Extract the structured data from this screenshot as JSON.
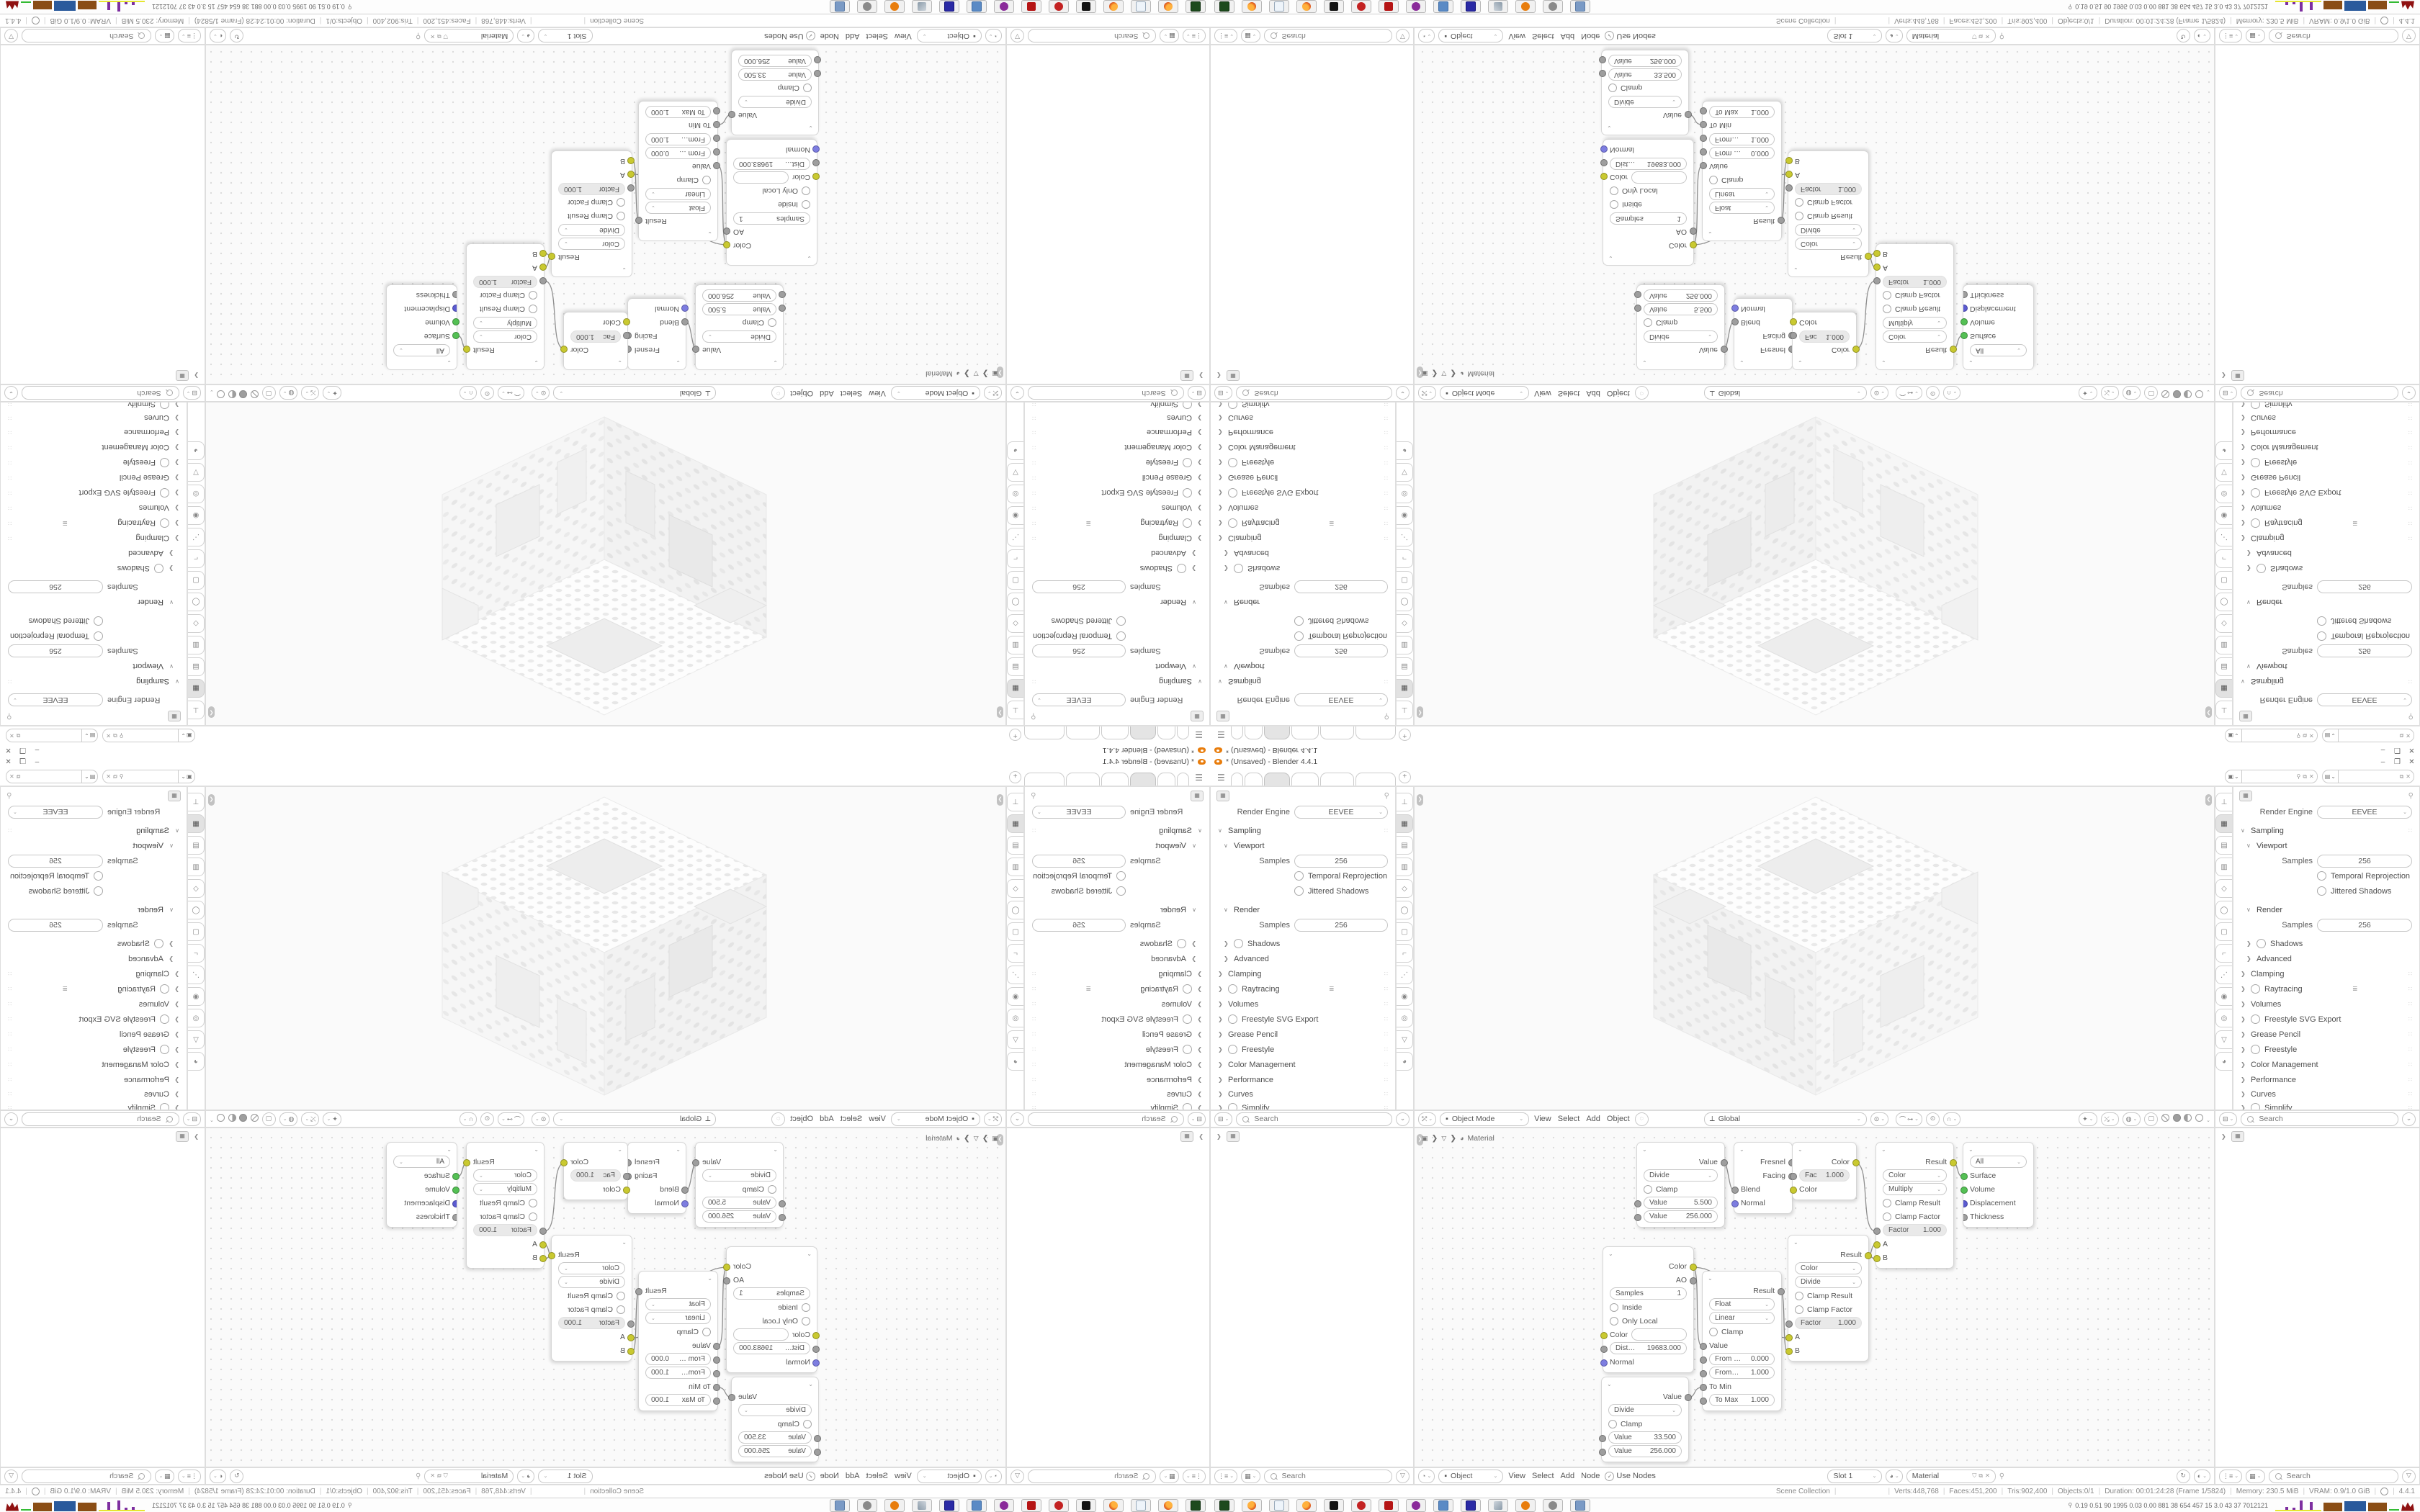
{
  "window": {
    "title": "* (Unsaved) - Blender 4.4.1",
    "minimize": "–",
    "maximize": "❐",
    "close": "✕"
  },
  "topbar": {
    "plus": "+"
  },
  "common": {
    "search": "Search"
  },
  "props": {
    "render_engine_label": "Render Engine",
    "render_engine_value": "EEVEE",
    "sampling": "Sampling",
    "viewport": "Viewport",
    "samples_label": "Samples",
    "samples_viewport": "256",
    "temporal_reprojection": "Temporal Reprojection",
    "jittered_shadows": "Jittered Shadows",
    "render": "Render",
    "samples_render": "256",
    "shadows": "Shadows",
    "advanced": "Advanced",
    "clamping": "Clamping",
    "raytracing": "Raytracing",
    "volumes": "Volumes",
    "freestyle_svg": "Freestyle SVG Export",
    "grease_pencil": "Grease Pencil",
    "freestyle": "Freestyle",
    "color_management": "Color Management",
    "performance": "Performance",
    "curves": "Curves",
    "simplify": "Simplify"
  },
  "viewport_header": {
    "mode": "Object Mode",
    "menu_view": "View",
    "menu_select": "Select",
    "menu_add": "Add",
    "menu_object": "Object",
    "orientation": "Global"
  },
  "shader_header": {
    "mode": "Object",
    "menu_view": "View",
    "menu_select": "Select",
    "menu_add": "Add",
    "menu_node": "Node",
    "use_nodes": "Use Nodes",
    "slot": "Slot 1",
    "material": "Material"
  },
  "shader_breadcrumb": {
    "material": "Material"
  },
  "nodes": {
    "math_divide_1": {
      "op": "Divide",
      "clamp": "Clamp",
      "out": "Value",
      "v1_label": "Value",
      "v1": "5.500",
      "v2_label": "Value",
      "v2": "256.000"
    },
    "layer_weight": {
      "out_fresnel": "Fresnel",
      "out_facing": "Facing",
      "in_blend": "Blend",
      "in_normal": "Normal"
    },
    "invert": {
      "out": "Color",
      "fac_label": "Fac",
      "fac": "1.000",
      "in_color": "Color"
    },
    "mix_multiply": {
      "out": "Result",
      "data_type": "Color",
      "blend": "Multiply",
      "clamp_result": "Clamp Result",
      "clamp_factor": "Clamp Factor",
      "factor_label": "Factor",
      "factor": "1.000",
      "a": "A",
      "b": "B"
    },
    "material_output": {
      "target": "All",
      "surface": "Surface",
      "volume": "Volume",
      "displacement": "Displacement",
      "thickness": "Thickness"
    },
    "ambient_occlusion": {
      "out_color": "Color",
      "out_ao": "AO",
      "samples_label": "Samples",
      "samples": "1",
      "inside": "Inside",
      "only_local": "Only Local",
      "color_label": "Color",
      "dist_label": "Dist…",
      "dist": "19683.000",
      "normal": "Normal"
    },
    "map_range": {
      "out": "Result",
      "data_type": "Float",
      "interp": "Linear",
      "clamp": "Clamp",
      "value": "Value",
      "from_min_label": "From …",
      "from_min": "0.000",
      "from_max_label": "From…",
      "from_max": "1.000",
      "to_min": "To Min",
      "to_max_label": "To Max",
      "to_max": "1.000"
    },
    "mix_divide": {
      "out": "Result",
      "data_type": "Color",
      "blend": "Divide",
      "clamp_result": "Clamp Result",
      "clamp_factor": "Clamp Factor",
      "factor_label": "Factor",
      "factor": "1.000",
      "a": "A",
      "b": "B"
    },
    "math_divide_2": {
      "op": "Divide",
      "clamp": "Clamp",
      "out": "Value",
      "v1_label": "Value",
      "v1": "33.500",
      "v2_label": "Value",
      "v2": "256.000"
    }
  },
  "status_bar": {
    "collection": "Scene Collection",
    "verts": "Verts:448,768",
    "faces": "Faces:451,200",
    "tris": "Tris:902,400",
    "objects": "Objects:0/1",
    "duration": "Duration: 00:01:24:28 (Frame 1/5824)",
    "memory": "Memory: 230.5 MiB",
    "vram": "VRAM: 0.9/1.0 GiB",
    "version": "4.4.1"
  },
  "taskbar": {
    "stats": "0.19 0.51  90  1995 0.03 0.00 881   38   654  457   15   3.0   43   37  7012121"
  },
  "colors": {
    "accent_orange": "#e87d0d",
    "socket_value": "#9e9e9e",
    "socket_color": "#c9c930",
    "socket_shader": "#54c054",
    "socket_vector": "#7d7de0",
    "graph_purple": "#7d2ea0",
    "graph_brown": "#8a4d15",
    "graph_blue": "#2a5a9c",
    "graph_green": "#33bb33",
    "graph_red": "#8f1111",
    "graph_yellow": "#e6e630"
  }
}
